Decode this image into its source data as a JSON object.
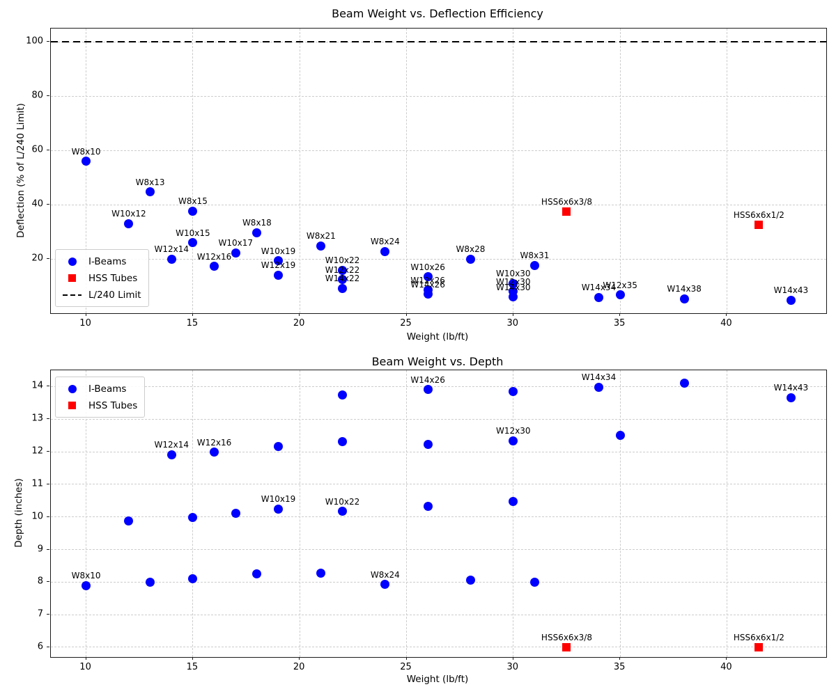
{
  "figure_bg": "#ffffff",
  "colors": {
    "ibeam": "#0000ff",
    "hss": "#ff0000",
    "limit_line": "#000000",
    "grid": "#cccccc"
  },
  "chart_data": [
    {
      "type": "scatter",
      "title": "Beam Weight vs. Deflection Efficiency",
      "xlabel": "Weight (lb/ft)",
      "ylabel": "Deflection (% of L/240 Limit)",
      "xlim": [
        8.35,
        44.65
      ],
      "ylim": [
        0,
        105
      ],
      "xticks": [
        10,
        15,
        20,
        25,
        30,
        35,
        40
      ],
      "yticks": [
        20,
        40,
        60,
        80,
        100
      ],
      "grid": true,
      "legend_position": "lower-left",
      "legend": [
        {
          "label": "I-Beams",
          "marker": "circle",
          "color": "#0000ff"
        },
        {
          "label": "HSS Tubes",
          "marker": "square",
          "color": "#ff0000"
        },
        {
          "label": "L/240 Limit",
          "marker": "dashed-line",
          "color": "#000000"
        }
      ],
      "hline": {
        "y": 100,
        "color": "#000000",
        "style": "dashed"
      },
      "series": [
        {
          "name": "I-Beams",
          "marker": "circle",
          "color": "#0000ff",
          "points": [
            {
              "label": "W8x10",
              "x": 10,
              "y": 56
            },
            {
              "label": "W10x12",
              "x": 12,
              "y": 33
            },
            {
              "label": "W8x13",
              "x": 13,
              "y": 44.7
            },
            {
              "label": "W12x14",
              "x": 14,
              "y": 20
            },
            {
              "label": "W8x15",
              "x": 15,
              "y": 37.7
            },
            {
              "label": "W10x15",
              "x": 15,
              "y": 26
            },
            {
              "label": "W12x16",
              "x": 16,
              "y": 17.3
            },
            {
              "label": "W10x17",
              "x": 17,
              "y": 22.3
            },
            {
              "label": "W8x18",
              "x": 18,
              "y": 29.7
            },
            {
              "label": "W10x19",
              "x": 19,
              "y": 19.3
            },
            {
              "label": "W12x19",
              "x": 19,
              "y": 14.1
            },
            {
              "label": "W8x21",
              "x": 21,
              "y": 24.8
            },
            {
              "label": "W10x22",
              "x": 22,
              "y": 15.8
            },
            {
              "label": "W12x22",
              "x": 22,
              "y": 12.4
            },
            {
              "label": "W14x22",
              "x": 22,
              "y": 9.2
            },
            {
              "label": "W8x24",
              "x": 24,
              "y": 22.8
            },
            {
              "label": "W10x26",
              "x": 26,
              "y": 13.4
            },
            {
              "label": "W12x26",
              "x": 26,
              "y": 8.6
            },
            {
              "label": "W14x26",
              "x": 26,
              "y": 7.0
            },
            {
              "label": "W8x28",
              "x": 28,
              "y": 20
            },
            {
              "label": "W10x30",
              "x": 30,
              "y": 11
            },
            {
              "label": "W12x30",
              "x": 30,
              "y": 8.0
            },
            {
              "label": "W14x30",
              "x": 30,
              "y": 6.0
            },
            {
              "label": "W8x31",
              "x": 31,
              "y": 17.7
            },
            {
              "label": "W14x34",
              "x": 34,
              "y": 5.8
            },
            {
              "label": "W12x35",
              "x": 35,
              "y": 6.8
            },
            {
              "label": "W14x38",
              "x": 38,
              "y": 5.3
            },
            {
              "label": "W14x43",
              "x": 43,
              "y": 4.8
            }
          ]
        },
        {
          "name": "HSS Tubes",
          "marker": "square",
          "color": "#ff0000",
          "points": [
            {
              "label": "HSS6x6x3/8",
              "x": 32.5,
              "y": 37.5
            },
            {
              "label": "HSS6x6x1/2",
              "x": 41.5,
              "y": 32.6
            }
          ]
        }
      ]
    },
    {
      "type": "scatter",
      "title": "Beam Weight vs. Depth",
      "xlabel": "Weight (lb/ft)",
      "ylabel": "Depth (inches)",
      "xlim": [
        8.35,
        44.65
      ],
      "ylim": [
        5.7,
        14.5
      ],
      "xticks": [
        10,
        15,
        20,
        25,
        30,
        35,
        40
      ],
      "yticks": [
        6,
        7,
        8,
        9,
        10,
        11,
        12,
        13,
        14
      ],
      "grid": true,
      "legend_position": "upper-left",
      "legend": [
        {
          "label": "I-Beams",
          "marker": "circle",
          "color": "#0000ff"
        },
        {
          "label": "HSS Tubes",
          "marker": "square",
          "color": "#ff0000"
        }
      ],
      "series": [
        {
          "name": "I-Beams",
          "marker": "circle",
          "color": "#0000ff",
          "points": [
            {
              "label": "W8x10",
              "x": 10,
              "y": 7.89
            },
            {
              "label": "",
              "x": 12,
              "y": 9.87
            },
            {
              "label": "",
              "x": 13,
              "y": 7.99
            },
            {
              "label": "W12x14",
              "x": 14,
              "y": 11.91
            },
            {
              "label": "",
              "x": 15,
              "y": 8.11
            },
            {
              "label": "",
              "x": 15,
              "y": 9.99
            },
            {
              "label": "W12x16",
              "x": 16,
              "y": 11.99
            },
            {
              "label": "",
              "x": 17,
              "y": 10.11
            },
            {
              "label": "",
              "x": 18,
              "y": 8.26
            },
            {
              "label": "W10x19",
              "x": 19,
              "y": 10.24
            },
            {
              "label": "",
              "x": 19,
              "y": 12.16
            },
            {
              "label": "",
              "x": 21,
              "y": 8.28
            },
            {
              "label": "W10x22",
              "x": 22,
              "y": 10.17
            },
            {
              "label": "",
              "x": 22,
              "y": 12.31
            },
            {
              "label": "",
              "x": 22,
              "y": 13.74
            },
            {
              "label": "W8x24",
              "x": 24,
              "y": 7.93
            },
            {
              "label": "",
              "x": 26,
              "y": 10.33
            },
            {
              "label": "",
              "x": 26,
              "y": 12.22
            },
            {
              "label": "W14x26",
              "x": 26,
              "y": 13.91
            },
            {
              "label": "",
              "x": 28,
              "y": 8.06
            },
            {
              "label": "",
              "x": 30,
              "y": 10.47
            },
            {
              "label": "W12x30",
              "x": 30,
              "y": 12.34
            },
            {
              "label": "",
              "x": 30,
              "y": 13.84
            },
            {
              "label": "",
              "x": 31,
              "y": 8.0
            },
            {
              "label": "W14x34",
              "x": 34,
              "y": 13.98
            },
            {
              "label": "",
              "x": 35,
              "y": 12.5
            },
            {
              "label": "",
              "x": 38,
              "y": 14.1
            },
            {
              "label": "W14x43",
              "x": 43,
              "y": 13.66
            }
          ]
        },
        {
          "name": "HSS Tubes",
          "marker": "square",
          "color": "#ff0000",
          "points": [
            {
              "label": "HSS6x6x3/8",
              "x": 32.5,
              "y": 6.0
            },
            {
              "label": "HSS6x6x1/2",
              "x": 41.5,
              "y": 6.0
            }
          ]
        }
      ]
    }
  ]
}
